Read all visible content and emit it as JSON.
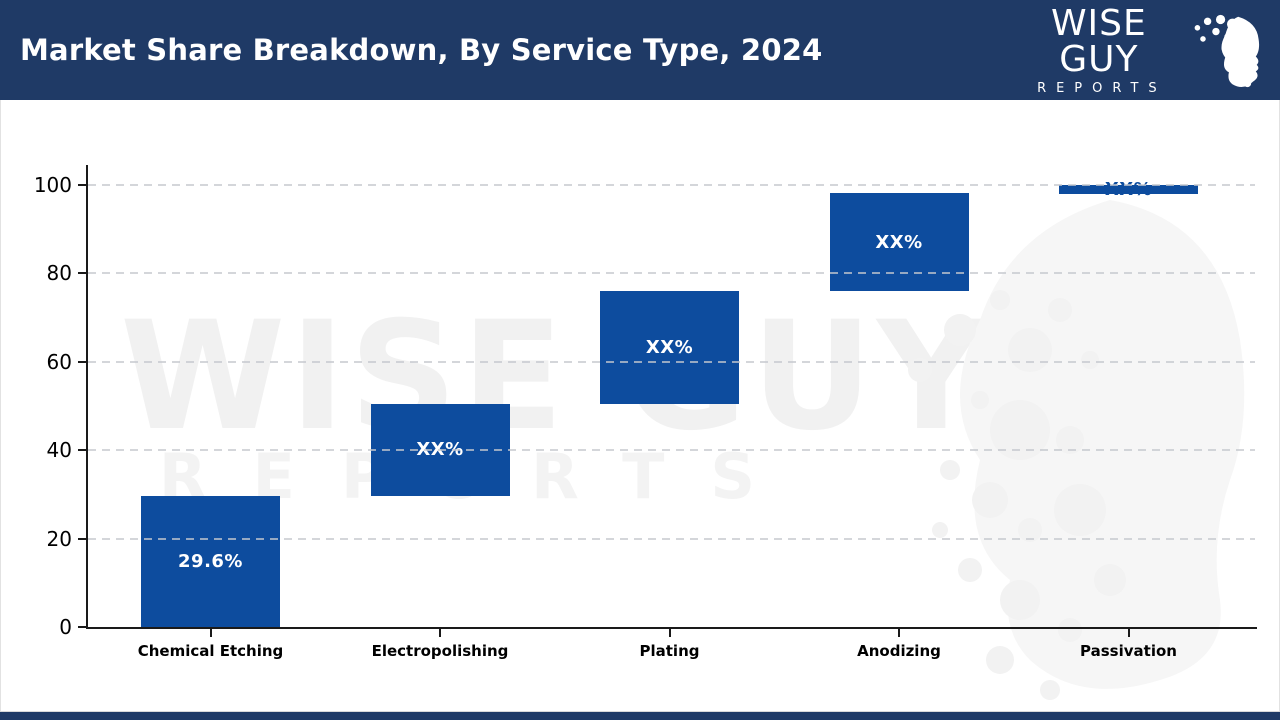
{
  "header": {
    "title": "Market Share Breakdown, By Service Type, 2024",
    "background_color": "#1f3a66",
    "logo": {
      "line1": "WISE GUY",
      "line2": "REPORTS"
    }
  },
  "watermark": {
    "line1": "WISE GUY",
    "line2": "REPORTS"
  },
  "chart_data": {
    "type": "bar",
    "subtype": "waterfall-floating-bars",
    "title": "Market Share Breakdown, By Service Type, 2024",
    "categories": [
      "Chemical Etching",
      "Electropolishing",
      "Plating",
      "Anodizing",
      "Passivation"
    ],
    "segments": [
      {
        "category": "Chemical Etching",
        "start": 0,
        "end": 29.6,
        "label": "29.6%",
        "label_style": "inside-white"
      },
      {
        "category": "Electropolishing",
        "start": 29.6,
        "end": 50.5,
        "label": "XX%",
        "label_style": "inside-white"
      },
      {
        "category": "Plating",
        "start": 50.5,
        "end": 76.0,
        "label": "XX%",
        "label_style": "inside-white"
      },
      {
        "category": "Anodizing",
        "start": 76.0,
        "end": 98.2,
        "label": "XX%",
        "label_style": "inside-white"
      },
      {
        "category": "Passivation",
        "start": 98.0,
        "end": 100.0,
        "label": "XX%",
        "label_style": "overlap-navy"
      }
    ],
    "xlabel": "",
    "ylabel": "",
    "ylim": [
      0,
      100
    ],
    "yticks": [
      0,
      20,
      40,
      60,
      80,
      100
    ],
    "grid": "dashed-horizontal",
    "legend": "none",
    "bar_color": "#0d4c9e",
    "bar_label_color": "#ffffff",
    "axis_color": "#1a1a1a",
    "gridline_color": "#c5c8ce"
  }
}
